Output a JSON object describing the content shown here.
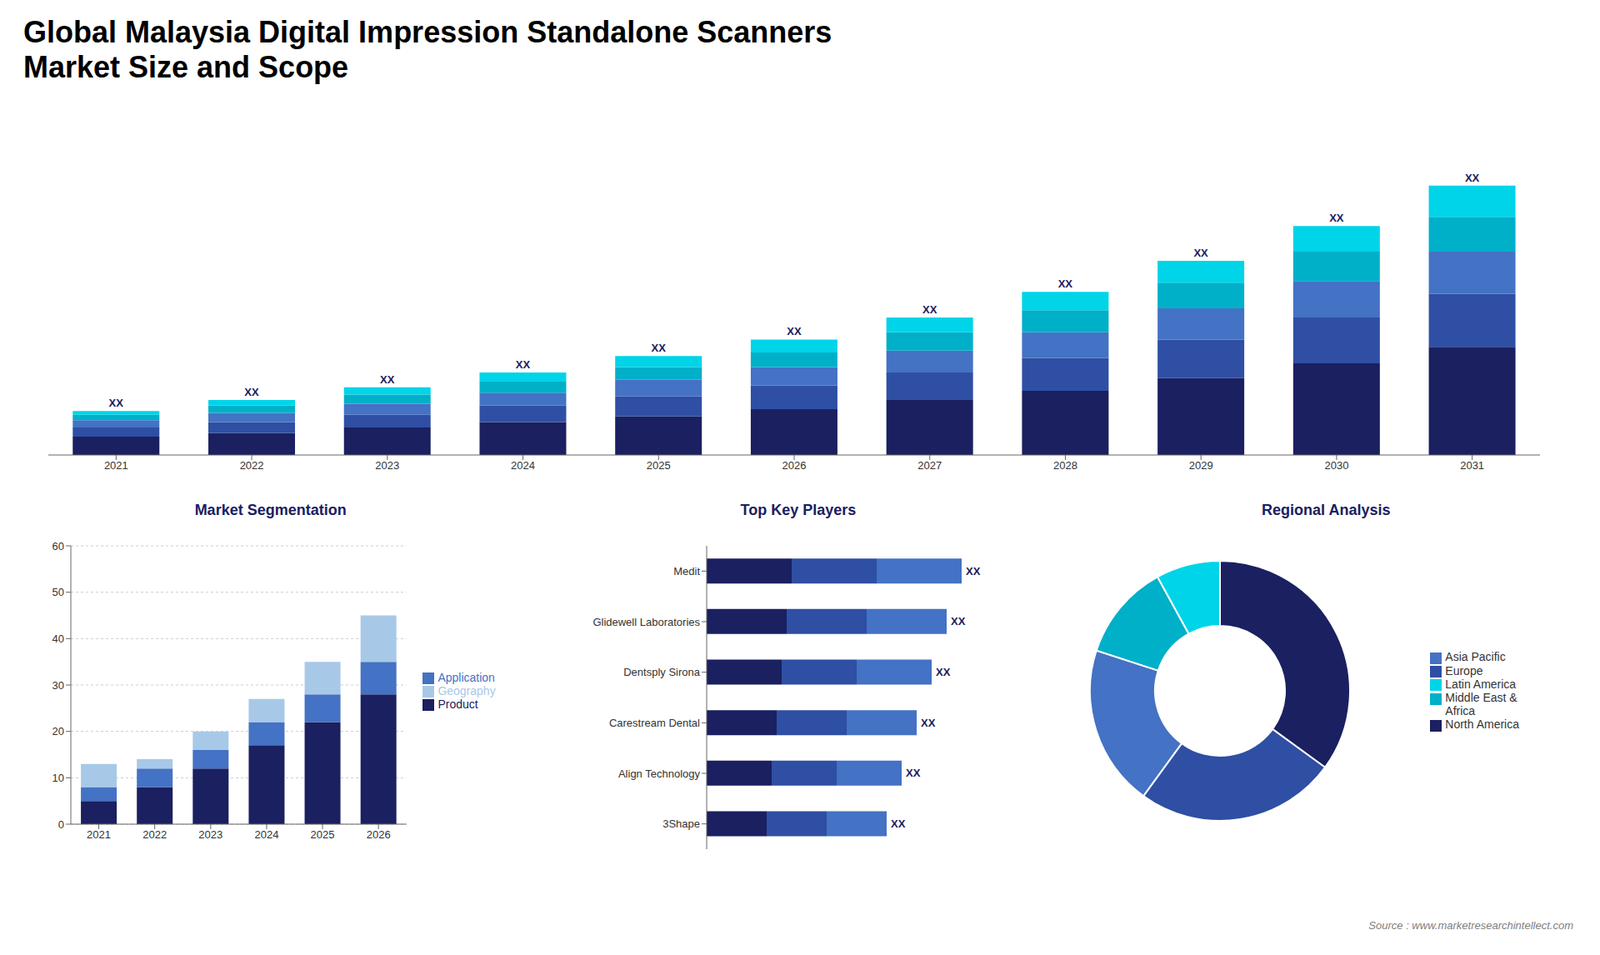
{
  "chart_data": [
    {
      "type": "bar",
      "title": "Global Malaysia Digital Impression Standalone Scanners\nMarket Size and Scope",
      "categories": [
        "2021",
        "2022",
        "2023",
        "2024",
        "2025",
        "2026",
        "2027",
        "2028",
        "2029",
        "2030",
        "2031"
      ],
      "series": [
        {
          "color": "#1a2060",
          "values": [
            1,
            1.2,
            1.5,
            1.8,
            2.1,
            2.5,
            3.0,
            3.5,
            4.2,
            5.0,
            5.9
          ]
        },
        {
          "color": "#2e4fa3",
          "values": [
            0.5,
            0.6,
            0.7,
            0.9,
            1.1,
            1.3,
            1.5,
            1.8,
            2.1,
            2.5,
            2.9
          ]
        },
        {
          "color": "#4472c4",
          "values": [
            0.4,
            0.5,
            0.6,
            0.7,
            0.9,
            1.0,
            1.2,
            1.4,
            1.7,
            2.0,
            2.3
          ]
        },
        {
          "color": "#00b0c8",
          "values": [
            0.3,
            0.4,
            0.5,
            0.6,
            0.7,
            0.8,
            1.0,
            1.2,
            1.4,
            1.6,
            1.9
          ]
        },
        {
          "color": "#00d4e8",
          "values": [
            0.2,
            0.3,
            0.4,
            0.5,
            0.6,
            0.7,
            0.8,
            1.0,
            1.2,
            1.4,
            1.7
          ]
        }
      ],
      "stacked": true,
      "ylim": [
        0,
        18.375
      ],
      "tick_labels": "x",
      "grid": false,
      "data_labels": true,
      "value_labels": [
        "XX",
        "XX",
        "XX",
        "XX",
        "XX",
        "XX",
        "XX",
        "XX",
        "XX",
        "XX",
        "XX"
      ]
    },
    {
      "type": "bar",
      "title": "Market Segmentation",
      "categories": [
        "2021",
        "2022",
        "2023",
        "2024",
        "2025",
        "2026"
      ],
      "series": [
        {
          "name": "Product",
          "color": "#1a2060",
          "values": [
            5,
            8,
            12,
            17,
            22,
            28
          ]
        },
        {
          "name": "Application",
          "color": "#4472c4",
          "values": [
            3,
            4,
            4,
            5,
            6,
            7
          ]
        },
        {
          "name": "Geography",
          "color": "#a8c8e8",
          "values": [
            5,
            2,
            4,
            5,
            7,
            10
          ]
        }
      ],
      "stacked": true,
      "ylim": [
        0,
        60
      ],
      "yticks": [
        0,
        10,
        20,
        30,
        40,
        50,
        60
      ],
      "grid": true,
      "legend": "right"
    },
    {
      "type": "bar",
      "title": "Top Key Players",
      "orientation": "horizontal",
      "categories": [
        "Medit",
        "Glidewell Laboratories",
        "Dentsply Sirona",
        "Carestream Dental",
        "Align Technology",
        "3Shape"
      ],
      "series": [
        {
          "color": "#1a2060",
          "values": [
            0.2833333333333333,
            0.26666666666666666,
            0.25,
            0.2333333333333333,
            0.21666666666666667,
            0.19999999999999998
          ]
        },
        {
          "color": "#2e4fa3",
          "values": [
            0.2833333333333333,
            0.26666666666666666,
            0.25,
            0.2333333333333333,
            0.21666666666666667,
            0.19999999999999998
          ]
        },
        {
          "color": "#4472c4",
          "values": [
            0.2833333333333333,
            0.26666666666666666,
            0.25,
            0.2333333333333333,
            0.21666666666666667,
            0.19999999999999998
          ]
        }
      ],
      "stacked": true,
      "xlim": [
        0,
        1
      ],
      "tick_labels": "y",
      "grid": false,
      "data_labels": true,
      "value_labels": [
        "XX",
        "XX",
        "XX",
        "XX",
        "XX",
        "XX"
      ]
    },
    {
      "type": "pie",
      "title": "Regional Analysis",
      "categories": [
        "Latin America",
        "Middle East &\nAfrica",
        "Asia Pacific",
        "Europe",
        "North America"
      ],
      "values": [
        8,
        12,
        20,
        25,
        35
      ],
      "colors": [
        "#00d4e8",
        "#00b0c8",
        "#4472c4",
        "#2e4fa3",
        "#1a2060"
      ],
      "legend": "right",
      "annotations": [
        "Source : www.marketresearchintellect.com"
      ]
    }
  ]
}
